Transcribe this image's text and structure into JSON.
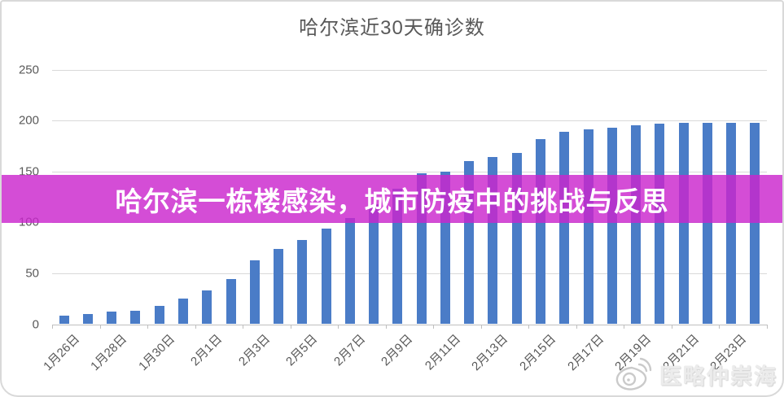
{
  "banner": {
    "text": "哈尔滨一栋楼感染，城市防疫中的挑战与反思",
    "bg_color": "#ca26cd",
    "text_color": "#ffffff"
  },
  "watermark": {
    "icon": "weibo-icon",
    "text": "医略仲崇海"
  },
  "colors": {
    "bar": "#4a7cc7",
    "gridline": "#d9d9d9",
    "axis": "#bfbfbf",
    "label_text": "#595959",
    "banner_overlay": "rgba(202,38,205,0.82)"
  },
  "chart_data": {
    "type": "bar",
    "title": "哈尔滨近30天确诊数",
    "x": [
      "1月26日",
      "1月27日",
      "1月28日",
      "1月29日",
      "1月30日",
      "1月31日",
      "2月1日",
      "2月2日",
      "2月3日",
      "2月4日",
      "2月5日",
      "2月6日",
      "2月7日",
      "2月8日",
      "2月9日",
      "2月10日",
      "2月11日",
      "2月12日",
      "2月13日",
      "2月14日",
      "2月15日",
      "2月16日",
      "2月17日",
      "2月18日",
      "2月19日",
      "2月20日",
      "2月21日",
      "2月22日",
      "2月23日",
      "2月24日"
    ],
    "values": [
      8,
      10,
      12,
      13,
      18,
      25,
      33,
      44,
      63,
      74,
      83,
      94,
      104,
      118,
      133,
      148,
      150,
      160,
      164,
      168,
      182,
      189,
      191,
      193,
      195,
      197,
      198,
      198,
      198,
      198
    ],
    "x_tick_labels": [
      "1月26日",
      "1月28日",
      "1月30日",
      "2月1日",
      "2月3日",
      "2月5日",
      "2月7日",
      "2月9日",
      "2月11日",
      "2月13日",
      "2月15日",
      "2月17日",
      "2月19日",
      "2月21日",
      "2月23日"
    ],
    "xlabel": "",
    "ylabel": "",
    "ylim": [
      0,
      250
    ],
    "y_ticks": [
      0,
      50,
      100,
      150,
      200,
      250
    ],
    "grid": true,
    "legend": false
  }
}
